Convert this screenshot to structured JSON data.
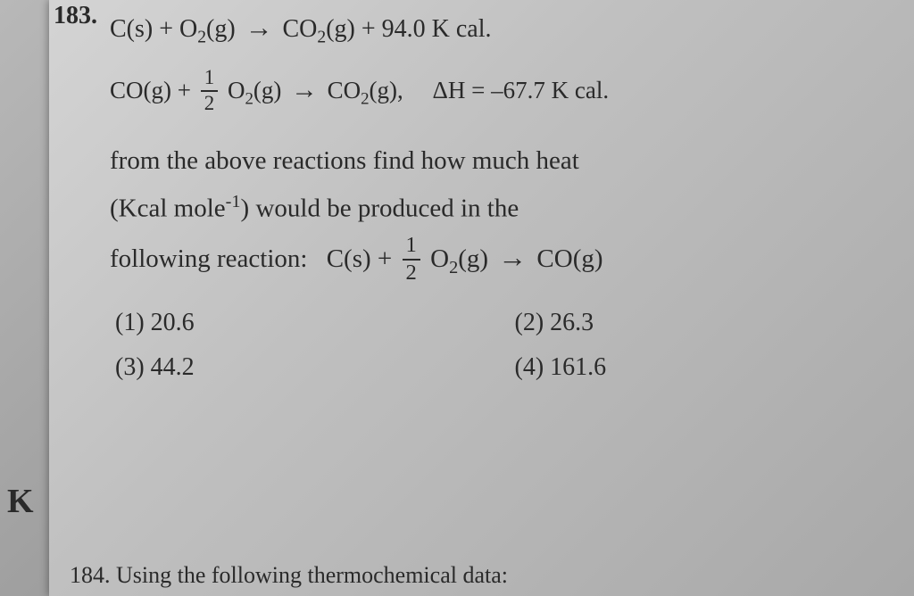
{
  "questionNumber": "183.",
  "sideLabel": "K",
  "eq1": {
    "lhs1": "C(s) + O",
    "sub1": "2",
    "mid1": "(g)",
    "arrow": "→",
    "rhs1": "CO",
    "sub2": "2",
    "rhs2": "(g) + 94.0 K cal."
  },
  "eq2": {
    "lhs1": "CO(g) +",
    "frac_num": "1",
    "frac_den": "2",
    "lhs2": "O",
    "sub1": "2",
    "lhs3": "(g)",
    "arrow": "→",
    "rhs1": "CO",
    "sub2": "2",
    "rhs2": "(g),",
    "delta": "ΔH = –67.7 K cal."
  },
  "body": {
    "line1": "from the above reactions find how much heat",
    "line2a": "(Kcal mole",
    "sup": "-1",
    "line2b": ") would be produced in the",
    "line3a": "following reaction:",
    "line3b": "C(s) +",
    "frac_num": "1",
    "frac_den": "2",
    "line3c": "O",
    "sub": "2",
    "line3d": "(g)",
    "arrow": "→",
    "line3e": "CO(g)"
  },
  "options": {
    "o1": "(1) 20.6",
    "o2": "(2) 26.3",
    "o3": "(3) 44.2",
    "o4": "(4) 161.6"
  },
  "nextQ": "184.   Using the following thermochemical data:"
}
